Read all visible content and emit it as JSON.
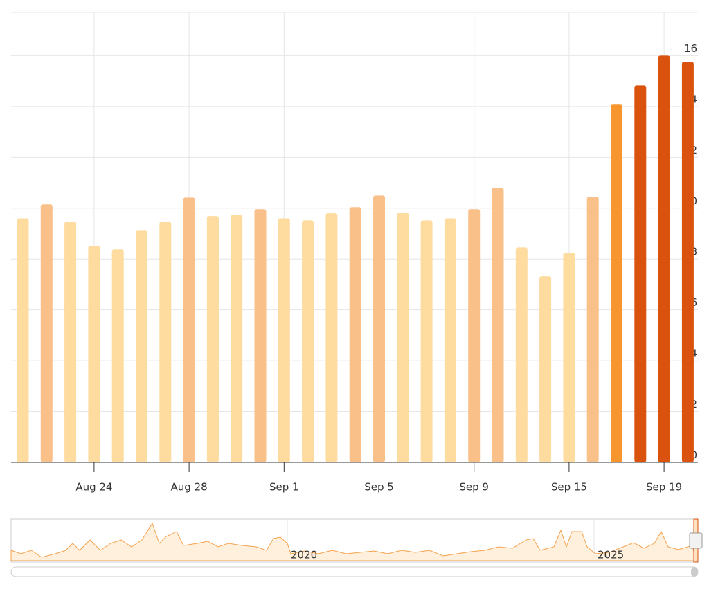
{
  "chart_data": {
    "type": "bar",
    "categories": [
      null,
      null,
      null,
      "Aug 24",
      null,
      null,
      null,
      "Aug 28",
      null,
      null,
      null,
      "Sep 1",
      null,
      null,
      null,
      "Sep 5",
      null,
      null,
      null,
      "Sep 9",
      null,
      null,
      null,
      "Sep 15",
      null,
      null,
      null,
      "Sep 19",
      null
    ],
    "values": [
      9.6,
      10.15,
      9.47,
      8.52,
      8.38,
      9.14,
      9.47,
      10.42,
      9.69,
      9.74,
      9.96,
      9.6,
      9.52,
      9.8,
      10.04,
      10.5,
      9.82,
      9.52,
      9.6,
      9.96,
      10.8,
      8.46,
      7.32,
      8.24,
      10.45,
      14.1,
      14.83,
      16,
      15.76
    ],
    "colors": [
      "#fedb9e",
      "#f9c08a",
      "#fedb9e",
      "#fedb9e",
      "#fedb9e",
      "#fedb9e",
      "#fedb9e",
      "#f9c08a",
      "#fedb9e",
      "#fedb9e",
      "#f9c08a",
      "#fedb9e",
      "#fedb9e",
      "#fedb9e",
      "#f9c08a",
      "#f9c08a",
      "#fedb9e",
      "#fedb9e",
      "#fedb9e",
      "#f9c08a",
      "#f9c08a",
      "#fedb9e",
      "#fedb9e",
      "#fedb9e",
      "#f9c08a",
      "#f7962f",
      "#d9530f",
      "#d9530f",
      "#d9530f"
    ],
    "ylim": [
      0,
      17.7
    ],
    "yticks": [
      0,
      2,
      4,
      6,
      8,
      10,
      12,
      14,
      16
    ],
    "grid": true,
    "navigator_labels": [
      "2020",
      "2025"
    ]
  }
}
